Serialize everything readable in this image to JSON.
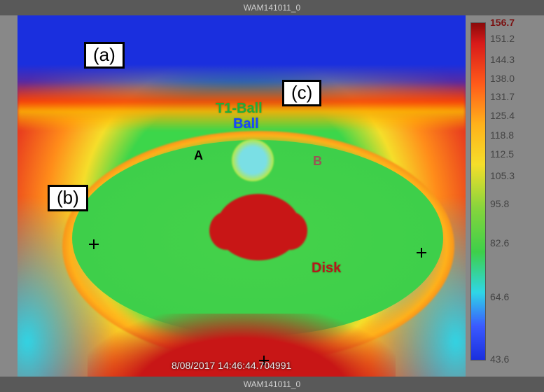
{
  "window": {
    "title": "WAM141011_0"
  },
  "annotations": {
    "a": "(a)",
    "b": "(b)",
    "c": "(c)"
  },
  "overlay": {
    "t1ball": "T1-Ball",
    "ball": "Ball",
    "disk": "Disk",
    "markerA": "A",
    "markerB": "B",
    "timestamp": "8/08/2017 14:46:44.704991"
  },
  "thermal_colors": {
    "cold": "#1a2fde",
    "cool": "#2fd6e6",
    "mild": "#45d24a",
    "warm": "#f5de2a",
    "hot": "#ff8c1a",
    "hottest": "#c81616"
  },
  "colorbar": {
    "unit": "",
    "min": 43.6,
    "max": 156.7,
    "ticks": [
      156.7,
      151.2,
      144.3,
      138.0,
      131.7,
      125.4,
      118.8,
      112.5,
      105.3,
      95.8,
      82.6,
      64.6,
      43.6
    ],
    "gradient_stops": [
      {
        "pct": 0,
        "color": "#8a0a0a"
      },
      {
        "pct": 6,
        "color": "#d81a1a"
      },
      {
        "pct": 18,
        "color": "#ff5a1a"
      },
      {
        "pct": 30,
        "color": "#ffb11a"
      },
      {
        "pct": 42,
        "color": "#f5de2a"
      },
      {
        "pct": 55,
        "color": "#86d43c"
      },
      {
        "pct": 68,
        "color": "#3ecf4a"
      },
      {
        "pct": 80,
        "color": "#2fd6e6"
      },
      {
        "pct": 90,
        "color": "#3a5aff"
      },
      {
        "pct": 100,
        "color": "#1a2fde"
      }
    ]
  }
}
